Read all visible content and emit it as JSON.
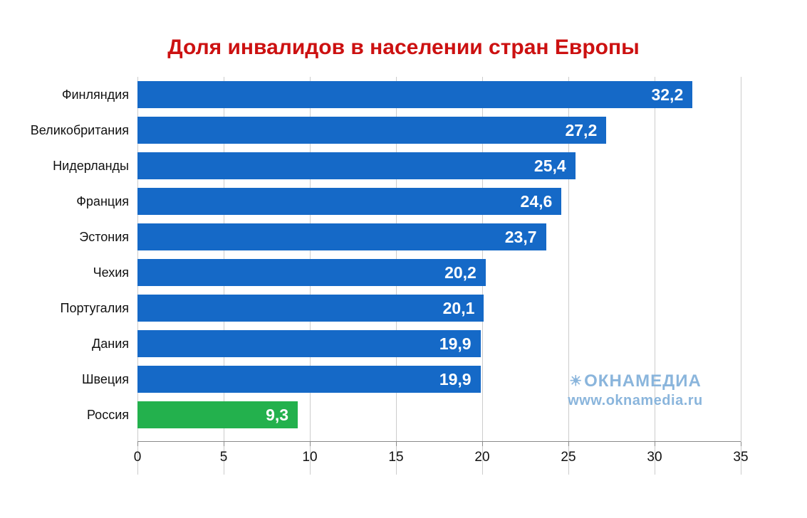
{
  "title": "Доля инвалидов в населении стран Европы",
  "watermark": {
    "brand": "ОКНАМЕДИА",
    "url": "www.oknamedia.ru"
  },
  "colors": {
    "bar_blue": "#1569c7",
    "bar_green": "#23b14d",
    "title_red": "#cc1111",
    "watermark_blue": "#8ab5dc",
    "gridline": "#cccccc",
    "axis": "#8a8a8a",
    "value_text": "#ffffff"
  },
  "chart_data": {
    "type": "bar",
    "orientation": "horizontal",
    "title": "Доля инвалидов в населении стран Европы",
    "categories": [
      "Финляндия",
      "Великобритания",
      "Нидерланды",
      "Франция",
      "Эстония",
      "Чехия",
      "Португалия",
      "Дания",
      "Швеция",
      "Россия"
    ],
    "values": [
      32.2,
      27.2,
      25.4,
      24.6,
      23.7,
      20.2,
      20.1,
      19.9,
      19.9,
      9.3
    ],
    "value_labels": [
      "32,2",
      "27,2",
      "25,4",
      "24,6",
      "23,7",
      "20,2",
      "20,1",
      "19,9",
      "19,9",
      "9,3"
    ],
    "highlight_category": "Россия",
    "highlight_note": "Russia bar is green, all other bars are blue",
    "xlabel": "",
    "ylabel": "",
    "xlim": [
      0,
      35
    ],
    "xticks": [
      0,
      5,
      10,
      15,
      20,
      25,
      30,
      35
    ],
    "grid": true,
    "legend": null
  }
}
